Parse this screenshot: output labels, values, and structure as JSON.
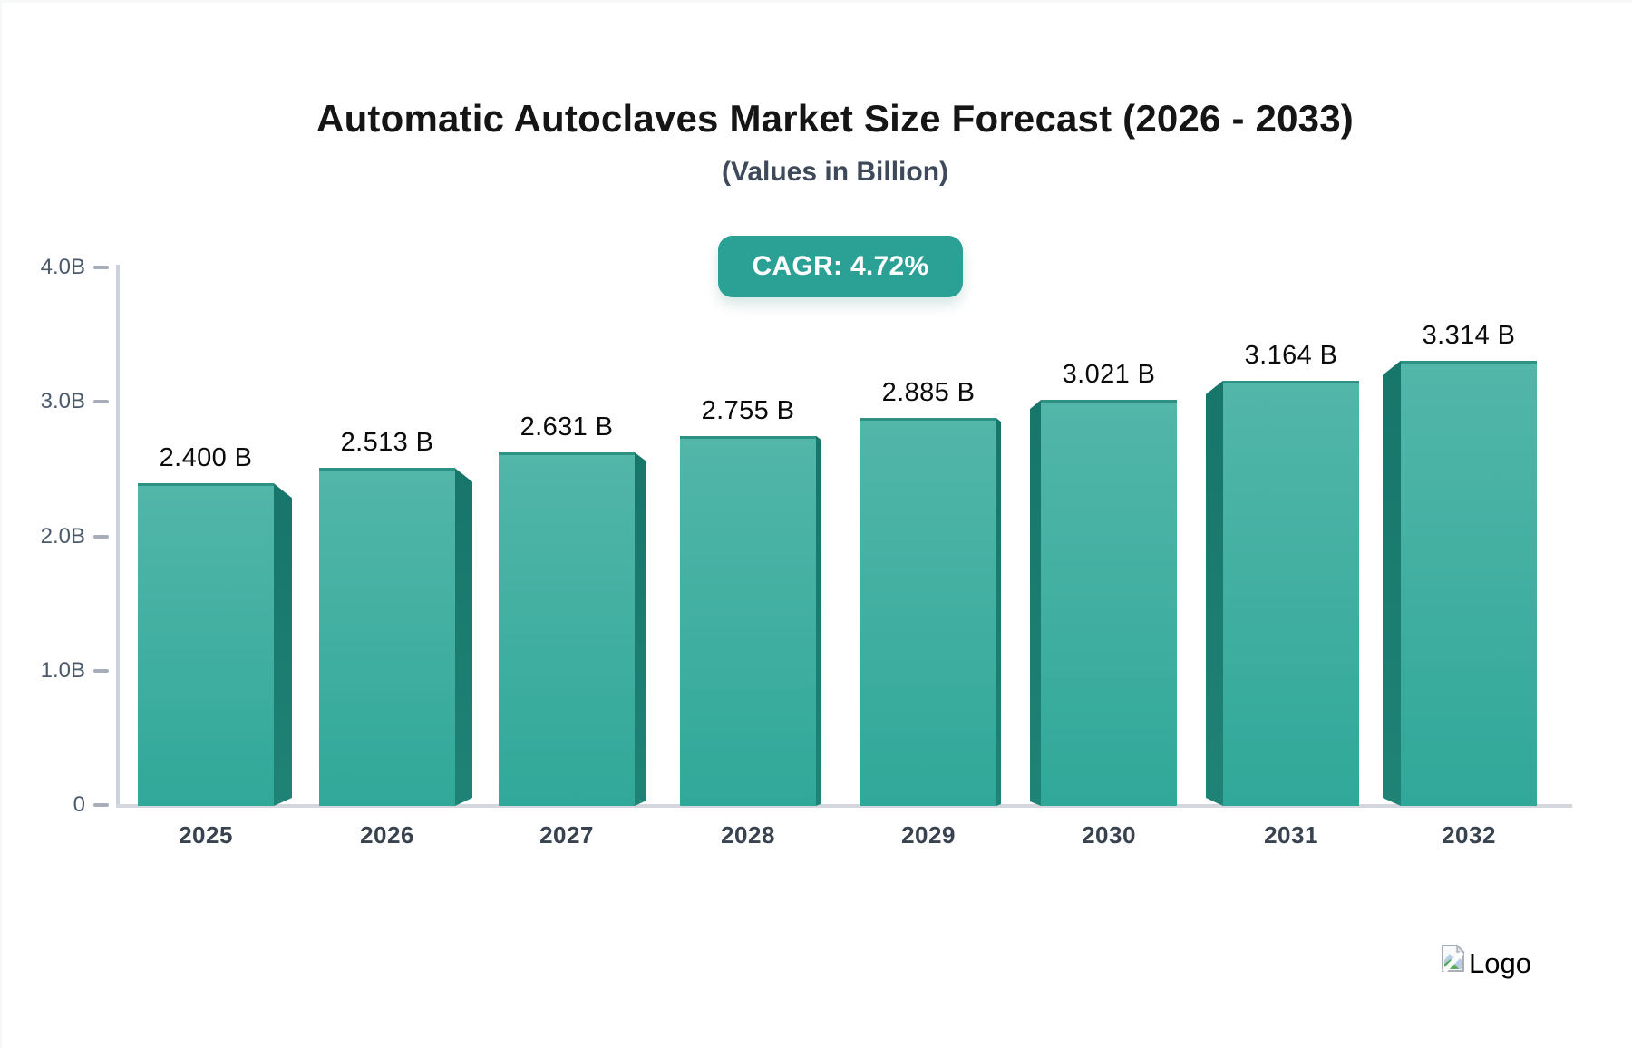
{
  "header": {
    "title": "Automatic Autoclaves Market Size Forecast (2026 - 2033)",
    "subtitle": "(Values in Billion)",
    "cagr_badge": "CAGR: 4.72%"
  },
  "chart_data": {
    "type": "bar",
    "title": "Automatic Autoclaves Market Size Forecast (2026 - 2033)",
    "subtitle": "(Values in Billion)",
    "cagr_label": "CAGR: 4.72%",
    "categories": [
      "2025",
      "2026",
      "2027",
      "2028",
      "2029",
      "2030",
      "2031",
      "2032"
    ],
    "values": [
      2.4,
      2.513,
      2.631,
      2.755,
      2.885,
      3.021,
      3.164,
      3.314
    ],
    "bar_labels": [
      "2.400 B",
      "2.513 B",
      "2.631 B",
      "2.755 B",
      "2.885 B",
      "3.021 B",
      "3.164 B",
      "3.314 B"
    ],
    "xlabel": "",
    "ylabel": "",
    "ylim": [
      0,
      4
    ],
    "ytick_labels": [
      "0",
      "1.0B",
      "2.0B",
      "3.0B",
      "4.0B"
    ],
    "grid": "off",
    "legend": "none",
    "colors": {
      "bar_face_top": "#52b6a9",
      "bar_face_bottom": "#30a899",
      "bar_side": "#1d7d70",
      "badge_background": "#2ba196",
      "badge_text": "#ffffff",
      "axis_line": "#ccd1da",
      "tick_label": "#4b5a6b",
      "value_label": "#0b0b0b",
      "category_label": "#39434f",
      "title_text": "#151515",
      "subtitle_text": "#3e4a5a"
    }
  },
  "footer": {
    "logo_text": "Logo"
  }
}
